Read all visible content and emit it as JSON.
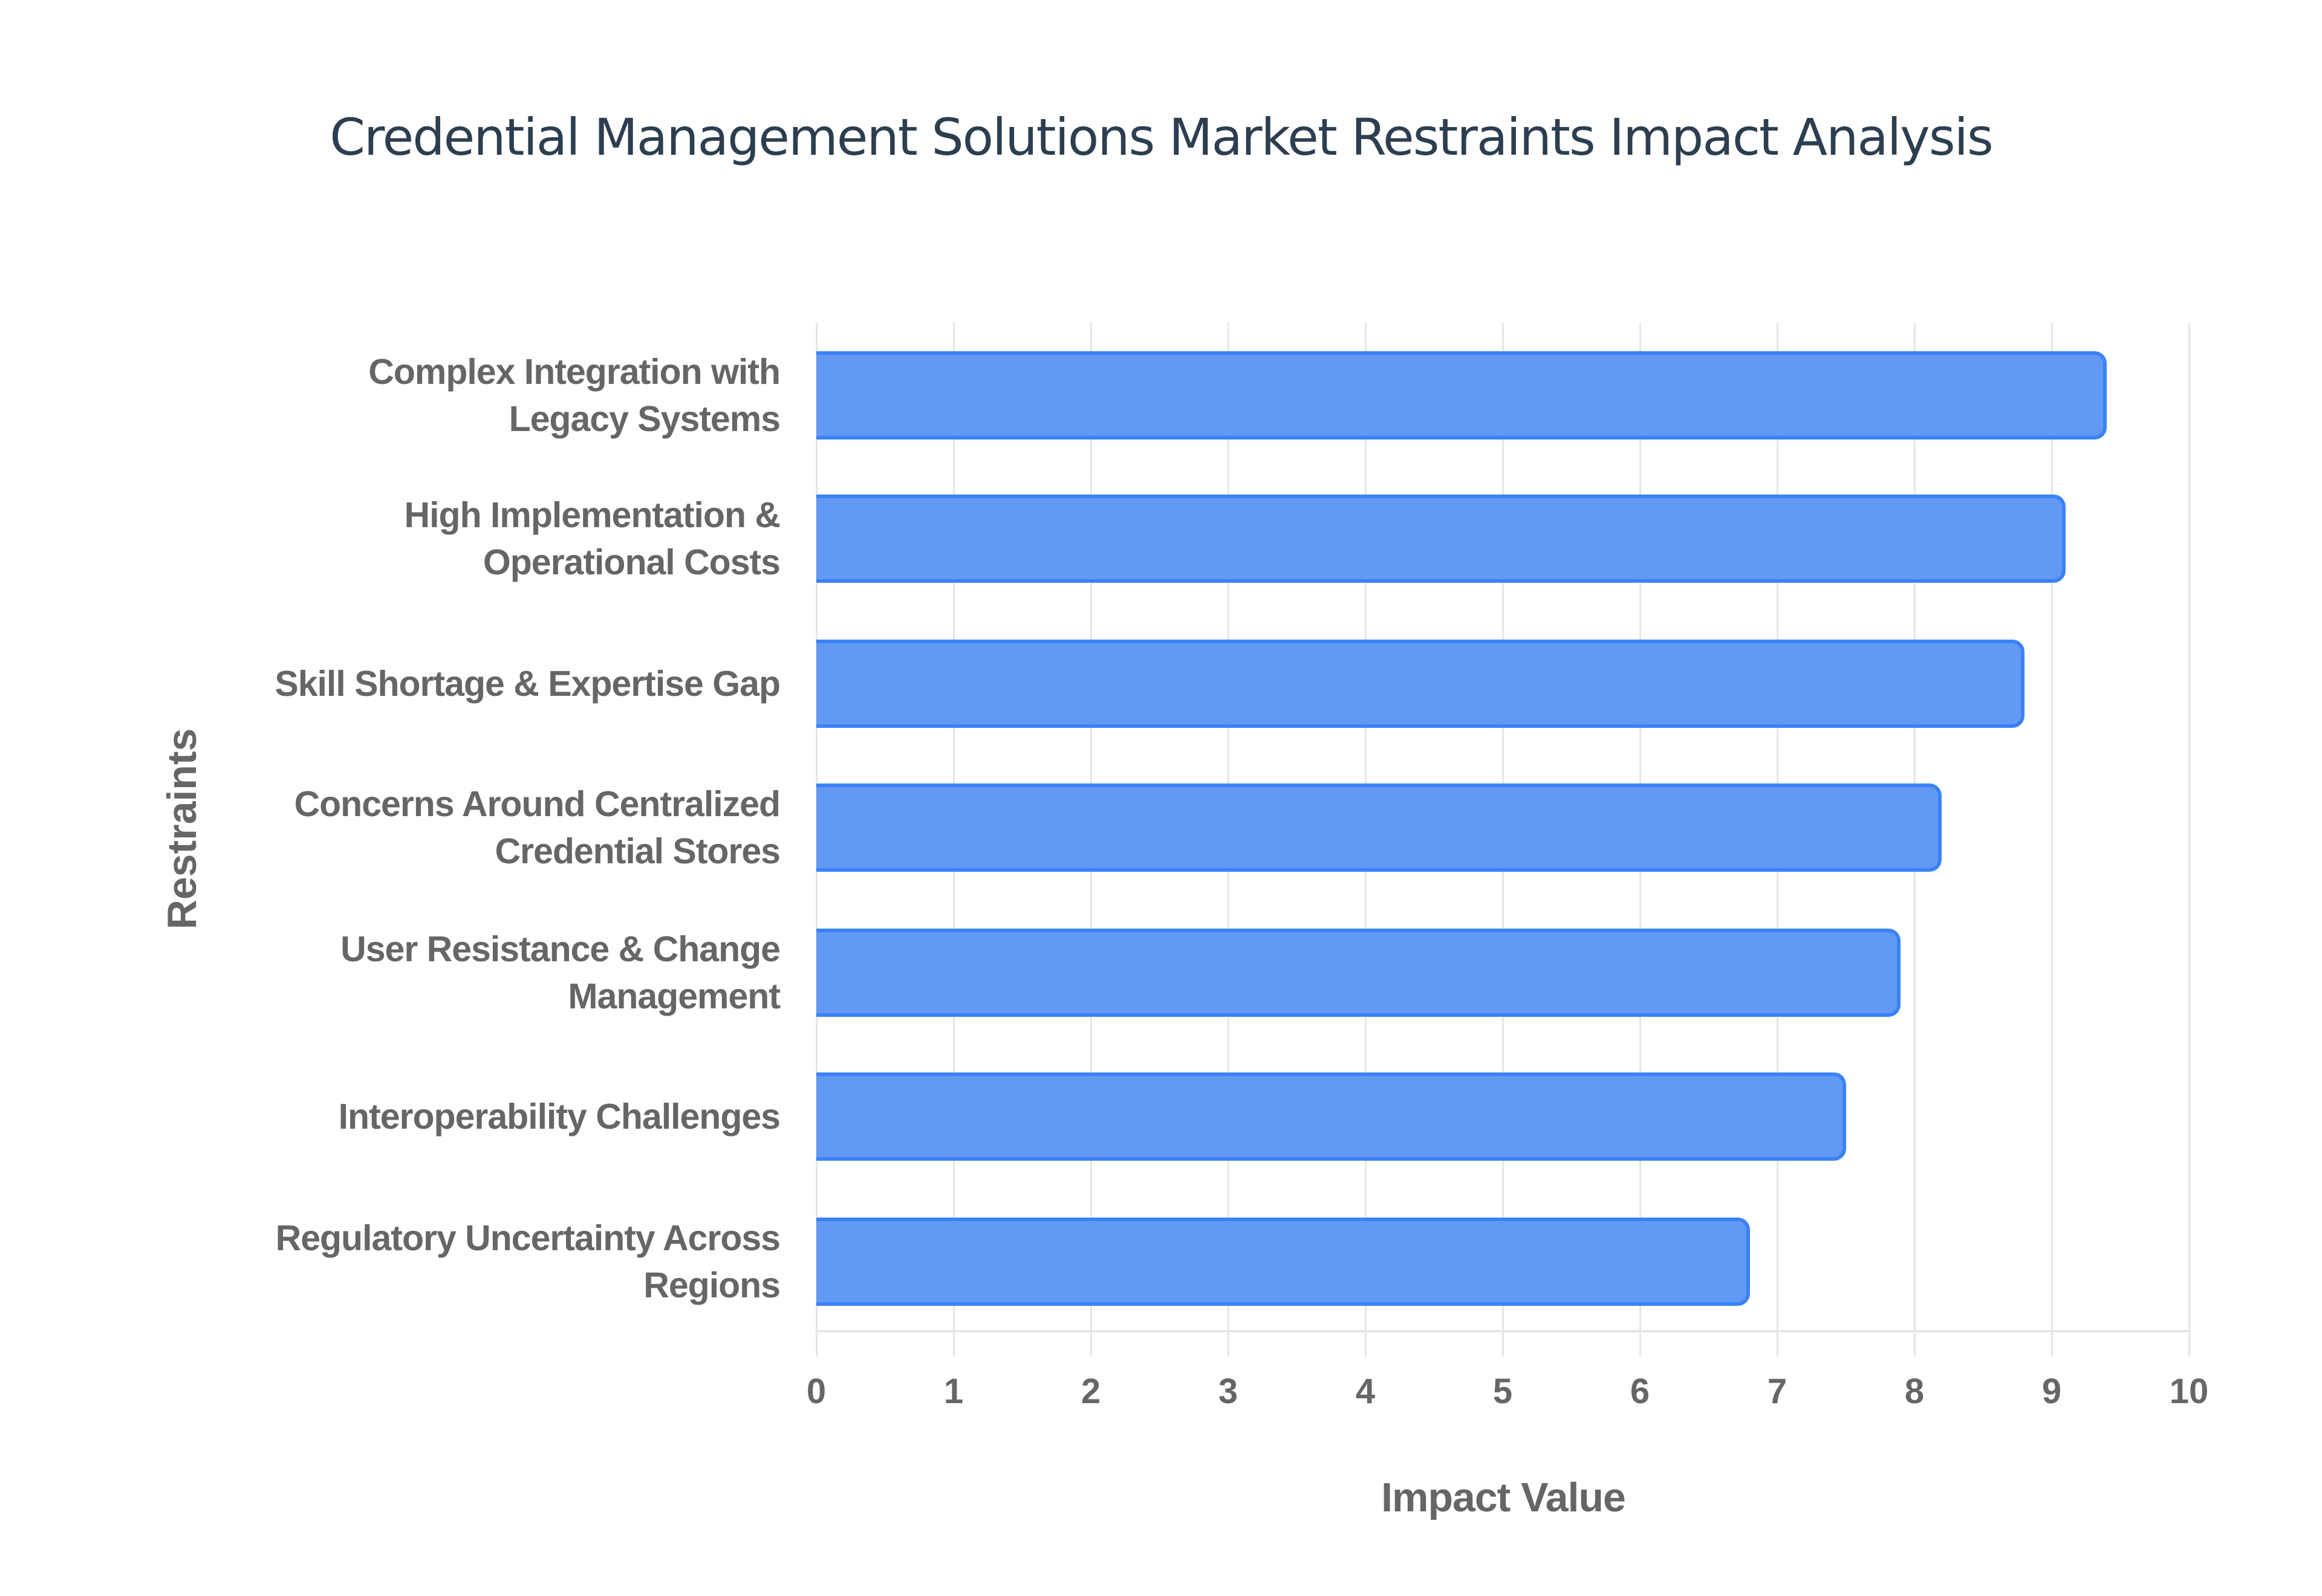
{
  "chart_data": {
    "type": "bar",
    "orientation": "horizontal",
    "title": "Credential Management Solutions Market Restraints Impact Analysis",
    "xlabel": "Impact Value",
    "ylabel": "Restraints",
    "xlim": [
      0,
      10
    ],
    "x_ticks": [
      "0",
      "1",
      "2",
      "3",
      "4",
      "5",
      "6",
      "7",
      "8",
      "9",
      "10"
    ],
    "grid": true,
    "legend": null,
    "categories": [
      "Complex Integration with Legacy Systems",
      "High Implementation & Operational Costs",
      "Skill Shortage & Expertise Gap",
      "Concerns Around Centralized Credential Stores",
      "User Resistance & Change Management",
      "Interoperability Challenges",
      "Regulatory Uncertainty Across Regions"
    ],
    "category_lines": [
      [
        "Complex Integration with",
        "Legacy Systems"
      ],
      [
        "High Implementation &",
        "Operational Costs"
      ],
      [
        "Skill Shortage & Expertise Gap"
      ],
      [
        "Concerns Around Centralized",
        "Credential Stores"
      ],
      [
        "User Resistance & Change",
        "Management"
      ],
      [
        "Interoperability Challenges"
      ],
      [
        "Regulatory Uncertainty Across",
        "Regions"
      ]
    ],
    "values": [
      9.4,
      9.1,
      8.8,
      8.2,
      7.9,
      7.5,
      6.8
    ],
    "colors": {
      "bar_fill": "#6199f4",
      "bar_border": "#3b82f6",
      "grid": "#e6e6e6",
      "text": "#666666",
      "title": "#2c3e50"
    }
  }
}
